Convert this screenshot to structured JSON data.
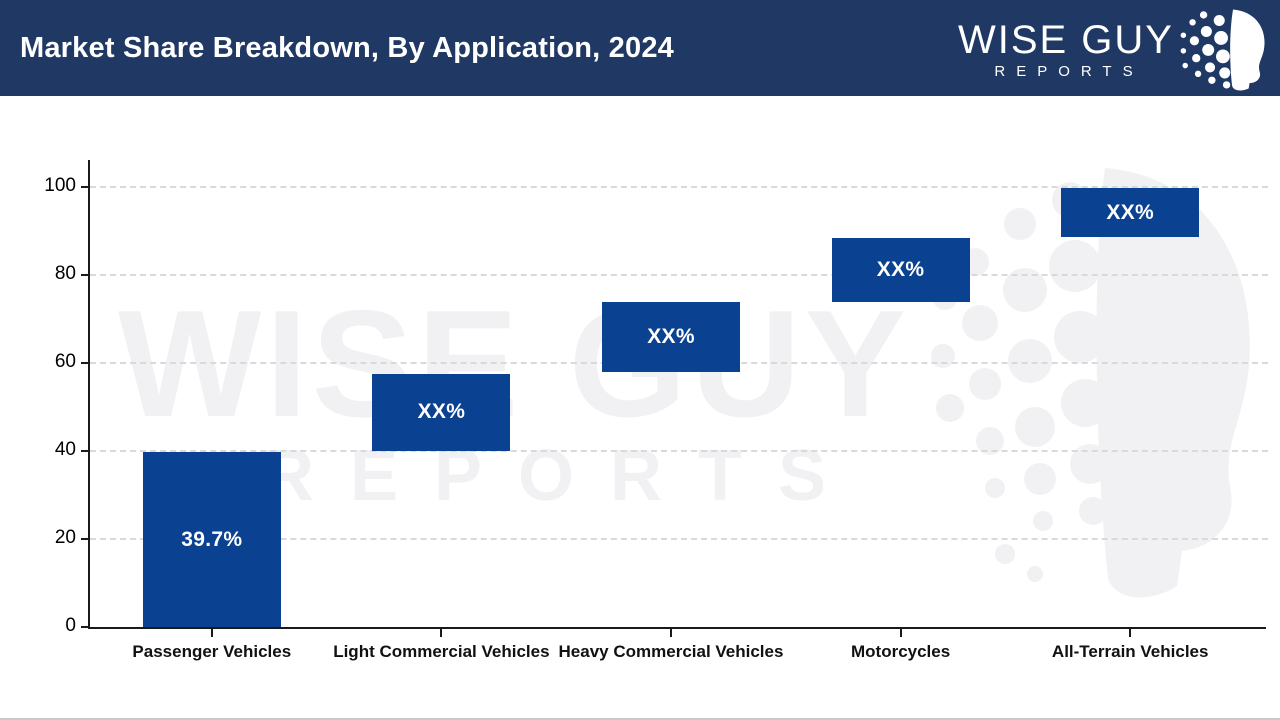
{
  "header": {
    "title": "Market Share Breakdown, By Application, 2024",
    "logo": {
      "name": "WISE GUY",
      "subtitle": "REPORTS"
    }
  },
  "watermark": {
    "line1": "WISE GUY",
    "line2": "REPORTS"
  },
  "chart_data": {
    "type": "bar",
    "subtype": "waterfall",
    "title": "Market Share Breakdown, By Application, 2024",
    "categories": [
      "Passenger Vehicles",
      "Light Commercial Vehicles",
      "Heavy Commercial Vehicles",
      "Motorcycles",
      "All-Terrain Vehicles"
    ],
    "segments": [
      {
        "category": "Passenger Vehicles",
        "start": 0,
        "end": 39.7,
        "label": "39.7%"
      },
      {
        "category": "Light Commercial Vehicles",
        "start": 40.1,
        "end": 57.6,
        "label": "XX%"
      },
      {
        "category": "Heavy Commercial Vehicles",
        "start": 57.9,
        "end": 73.9,
        "label": "XX%"
      },
      {
        "category": "Motorcycles",
        "start": 73.9,
        "end": 88.3,
        "label": "XX%"
      },
      {
        "category": "All-Terrain Vehicles",
        "start": 88.6,
        "end": 99.7,
        "label": "XX%"
      }
    ],
    "yticks": [
      0,
      20,
      40,
      60,
      80,
      100
    ],
    "ylim": [
      0,
      105.5
    ],
    "xlabel": "",
    "ylabel": "",
    "grid": "horizontal-dashed",
    "legend": "none",
    "bar_color": "#0a4191",
    "bar_label_color": "#ffffff"
  },
  "colors": {
    "header_bg": "#203864",
    "header_text": "#ffffff",
    "bar": "#0a4191",
    "watermark": "#f1f1f3",
    "gridline": "#d9d9d9",
    "axis": "#1a1a1a",
    "tick_text": "#000000"
  }
}
